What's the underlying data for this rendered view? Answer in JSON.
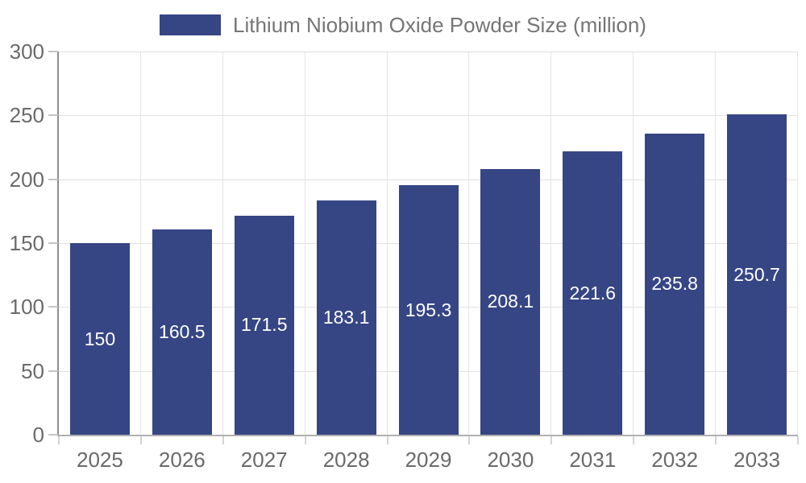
{
  "chart_data": {
    "type": "bar",
    "title": "Lithium Niobium Oxide Powder Size (million)",
    "categories": [
      "2025",
      "2026",
      "2027",
      "2028",
      "2029",
      "2030",
      "2031",
      "2032",
      "2033"
    ],
    "values": [
      150,
      160.5,
      171.5,
      183.1,
      195.3,
      208.1,
      221.6,
      235.8,
      250.7
    ],
    "value_labels": [
      "150",
      "160.5",
      "171.5",
      "183.1",
      "195.3",
      "208.1",
      "221.6",
      "235.8",
      "250.7"
    ],
    "xlabel": "",
    "ylabel": "",
    "ylim": [
      0,
      300
    ],
    "yticks": [
      0,
      50,
      100,
      150,
      200,
      250,
      300
    ],
    "grid": true,
    "legend": {
      "position": "top",
      "label": "Lithium Niobium Oxide Powder Size (million)"
    },
    "colors": {
      "bar": "#364584",
      "bar_label": "#ffffff",
      "axis_text": "#6a6a6a",
      "legend_text": "#757575",
      "grid_line": "#e0e0e0",
      "axis_line_y": "#8f8f8f",
      "axis_line_x": "#b0b0b0",
      "background": "#ffffff"
    }
  }
}
